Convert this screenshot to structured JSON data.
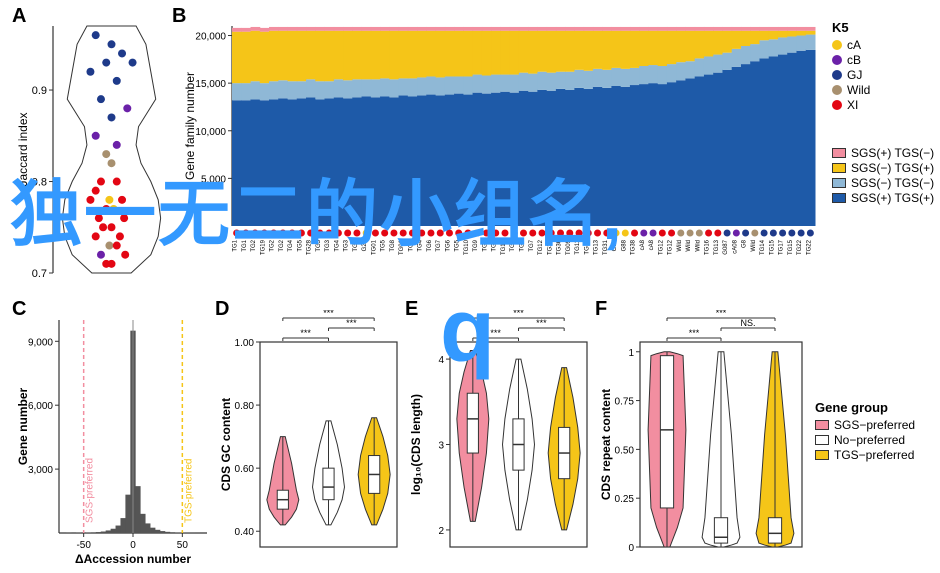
{
  "overlay": {
    "main": "独一无二的小组名,",
    "sub": "q"
  },
  "panels": {
    "A": "A",
    "B": "B",
    "C": "C",
    "D": "D",
    "E": "E",
    "F": "F"
  },
  "panelA": {
    "ylabel": "Jaccard index",
    "ylim": [
      0.7,
      0.97
    ],
    "yticks": [
      0.7,
      0.8,
      0.9
    ],
    "points": [
      {
        "x": 0.5,
        "y": 0.95,
        "c": "#1e3a8a"
      },
      {
        "x": 0.35,
        "y": 0.96,
        "c": "#1e3a8a"
      },
      {
        "x": 0.45,
        "y": 0.93,
        "c": "#1e3a8a"
      },
      {
        "x": 0.6,
        "y": 0.94,
        "c": "#1e3a8a"
      },
      {
        "x": 0.3,
        "y": 0.92,
        "c": "#1e3a8a"
      },
      {
        "x": 0.55,
        "y": 0.91,
        "c": "#1e3a8a"
      },
      {
        "x": 0.7,
        "y": 0.93,
        "c": "#1e3a8a"
      },
      {
        "x": 0.4,
        "y": 0.89,
        "c": "#1e3a8a"
      },
      {
        "x": 0.65,
        "y": 0.88,
        "c": "#6b21a8"
      },
      {
        "x": 0.5,
        "y": 0.87,
        "c": "#1e3a8a"
      },
      {
        "x": 0.35,
        "y": 0.85,
        "c": "#6b21a8"
      },
      {
        "x": 0.55,
        "y": 0.84,
        "c": "#6b21a8"
      },
      {
        "x": 0.45,
        "y": 0.83,
        "c": "#a8906f"
      },
      {
        "x": 0.5,
        "y": 0.82,
        "c": "#a8906f"
      },
      {
        "x": 0.4,
        "y": 0.8,
        "c": "#e30613"
      },
      {
        "x": 0.55,
        "y": 0.8,
        "c": "#e30613"
      },
      {
        "x": 0.35,
        "y": 0.79,
        "c": "#e30613"
      },
      {
        "x": 0.48,
        "y": 0.78,
        "c": "#f5c518"
      },
      {
        "x": 0.3,
        "y": 0.78,
        "c": "#e30613"
      },
      {
        "x": 0.6,
        "y": 0.78,
        "c": "#e30613"
      },
      {
        "x": 0.45,
        "y": 0.77,
        "c": "#e30613"
      },
      {
        "x": 0.52,
        "y": 0.77,
        "c": "#f5c518"
      },
      {
        "x": 0.38,
        "y": 0.76,
        "c": "#e30613"
      },
      {
        "x": 0.62,
        "y": 0.76,
        "c": "#e30613"
      },
      {
        "x": 0.5,
        "y": 0.75,
        "c": "#e30613"
      },
      {
        "x": 0.42,
        "y": 0.75,
        "c": "#e30613"
      },
      {
        "x": 0.58,
        "y": 0.74,
        "c": "#e30613"
      },
      {
        "x": 0.35,
        "y": 0.74,
        "c": "#e30613"
      },
      {
        "x": 0.48,
        "y": 0.73,
        "c": "#a8906f"
      },
      {
        "x": 0.55,
        "y": 0.73,
        "c": "#e30613"
      },
      {
        "x": 0.4,
        "y": 0.72,
        "c": "#6b21a8"
      },
      {
        "x": 0.63,
        "y": 0.72,
        "c": "#e30613"
      },
      {
        "x": 0.5,
        "y": 0.71,
        "c": "#e30613"
      },
      {
        "x": 0.45,
        "y": 0.71,
        "c": "#e30613"
      }
    ]
  },
  "panelB": {
    "ylabel": "Gene family number",
    "yticks": [
      "5,000",
      "10,000",
      "15,000",
      "20,000"
    ],
    "yvals": [
      5000,
      10000,
      15000,
      20000
    ],
    "ymax": 21000,
    "colors": {
      "sgs_pos_tgs_neg": "#f28ea0",
      "sgs_neg_tgs_pos": "#f5c518",
      "sgs_neg_tgs_neg": "#8fb8d6",
      "sgs_pos_tgs_pos": "#1e5aa8"
    },
    "xlabels": [
      "TG1",
      "TG1",
      "TG2",
      "TG19",
      "TG2",
      "TG2",
      "TG4",
      "TG5",
      "TG28",
      "TG3",
      "TG3",
      "TG4",
      "TG3",
      "TG4",
      "G28",
      "TG01",
      "TG5",
      "TG8",
      "TG01",
      "TG6",
      "TG4",
      "TG6",
      "TG7",
      "TG6",
      "TG5",
      "TG10",
      "TG9",
      "TG9",
      "TG7",
      "TG10",
      "TG8",
      "TG8",
      "TG7",
      "TG12",
      "TG30",
      "TG36",
      "TG09",
      "TG11",
      "TG11",
      "TG13",
      "TG31",
      "G87",
      "G88",
      "TG38",
      "cA8",
      "cA8",
      "TG12",
      "TG12",
      "Wild",
      "Wild",
      "Wild",
      "TG16",
      "TG13",
      "G087",
      "cA08",
      "G8",
      "Wild",
      "TG14",
      "TG15",
      "TG17",
      "TG15",
      "TG22",
      "TG22"
    ],
    "xdotcolors": [
      "#e30613",
      "#e30613",
      "#e30613",
      "#e30613",
      "#e30613",
      "#e30613",
      "#e30613",
      "#e30613",
      "#e30613",
      "#e30613",
      "#e30613",
      "#e30613",
      "#e30613",
      "#e30613",
      "#f5c518",
      "#e30613",
      "#e30613",
      "#e30613",
      "#e30613",
      "#e30613",
      "#e30613",
      "#e30613",
      "#e30613",
      "#e30613",
      "#e30613",
      "#e30613",
      "#e30613",
      "#e30613",
      "#e30613",
      "#e30613",
      "#e30613",
      "#e30613",
      "#e30613",
      "#e30613",
      "#e30613",
      "#e30613",
      "#e30613",
      "#e30613",
      "#e30613",
      "#e30613",
      "#e30613",
      "#f5c518",
      "#f5c518",
      "#e30613",
      "#6b21a8",
      "#6b21a8",
      "#e30613",
      "#e30613",
      "#a8906f",
      "#a8906f",
      "#a8906f",
      "#e30613",
      "#e30613",
      "#1e3a8a",
      "#6b21a8",
      "#1e3a8a",
      "#a8906f",
      "#1e3a8a",
      "#1e3a8a",
      "#1e3a8a",
      "#1e3a8a",
      "#1e3a8a",
      "#1e3a8a"
    ],
    "bars": [
      [
        13200,
        1800,
        5400,
        400
      ],
      [
        13200,
        1800,
        5400,
        400
      ],
      [
        13300,
        1900,
        5300,
        400
      ],
      [
        13200,
        1800,
        5400,
        400
      ],
      [
        13300,
        1900,
        5300,
        400
      ],
      [
        13400,
        1900,
        5200,
        400
      ],
      [
        13300,
        1900,
        5300,
        400
      ],
      [
        13400,
        1800,
        5300,
        400
      ],
      [
        13500,
        1900,
        5100,
        400
      ],
      [
        13300,
        1900,
        5300,
        400
      ],
      [
        13400,
        1800,
        5300,
        400
      ],
      [
        13500,
        1900,
        5100,
        400
      ],
      [
        13400,
        1900,
        5200,
        400
      ],
      [
        13500,
        1900,
        5100,
        400
      ],
      [
        13600,
        1800,
        5100,
        400
      ],
      [
        13500,
        1900,
        5100,
        400
      ],
      [
        13600,
        1900,
        5000,
        400
      ],
      [
        13500,
        1900,
        5100,
        400
      ],
      [
        13700,
        1800,
        5000,
        400
      ],
      [
        13600,
        1900,
        5000,
        400
      ],
      [
        13700,
        1900,
        4900,
        400
      ],
      [
        13800,
        1900,
        4800,
        400
      ],
      [
        13700,
        1900,
        4900,
        400
      ],
      [
        13800,
        1900,
        4800,
        400
      ],
      [
        13900,
        1800,
        4800,
        400
      ],
      [
        13800,
        1900,
        4800,
        400
      ],
      [
        14000,
        1900,
        4600,
        400
      ],
      [
        13900,
        1900,
        4700,
        400
      ],
      [
        14000,
        1900,
        4600,
        400
      ],
      [
        14100,
        1800,
        4600,
        400
      ],
      [
        14000,
        1900,
        4600,
        400
      ],
      [
        14200,
        1900,
        4400,
        400
      ],
      [
        14100,
        1900,
        4500,
        400
      ],
      [
        14300,
        1900,
        4300,
        400
      ],
      [
        14200,
        1900,
        4400,
        400
      ],
      [
        14400,
        1800,
        4300,
        400
      ],
      [
        14300,
        1900,
        4300,
        400
      ],
      [
        14500,
        1900,
        4100,
        400
      ],
      [
        14400,
        1900,
        4200,
        400
      ],
      [
        14600,
        1900,
        4000,
        400
      ],
      [
        14500,
        1900,
        4100,
        400
      ],
      [
        14700,
        1900,
        3900,
        400
      ],
      [
        14600,
        1900,
        4000,
        400
      ],
      [
        14800,
        1800,
        3900,
        400
      ],
      [
        14900,
        1900,
        3700,
        400
      ],
      [
        15000,
        1900,
        3600,
        400
      ],
      [
        14900,
        1900,
        3700,
        400
      ],
      [
        15100,
        1900,
        3500,
        400
      ],
      [
        15300,
        1900,
        3300,
        400
      ],
      [
        15500,
        1800,
        3200,
        400
      ],
      [
        15700,
        1900,
        2900,
        400
      ],
      [
        15900,
        1900,
        2700,
        400
      ],
      [
        16100,
        1900,
        2500,
        400
      ],
      [
        16400,
        1800,
        2300,
        400
      ],
      [
        16700,
        1900,
        1900,
        400
      ],
      [
        17000,
        1900,
        1600,
        400
      ],
      [
        17300,
        1800,
        1400,
        400
      ],
      [
        17600,
        1900,
        1000,
        400
      ],
      [
        17800,
        1800,
        900,
        400
      ],
      [
        18000,
        1800,
        700,
        400
      ],
      [
        18200,
        1700,
        600,
        400
      ],
      [
        18400,
        1600,
        500,
        400
      ],
      [
        18500,
        1600,
        400,
        400
      ]
    ]
  },
  "k5_legend": {
    "title": "K5",
    "items": [
      {
        "label": "cA",
        "color": "#f5c518"
      },
      {
        "label": "cB",
        "color": "#6b21a8"
      },
      {
        "label": "GJ",
        "color": "#1e3a8a"
      },
      {
        "label": "Wild",
        "color": "#a8906f"
      },
      {
        "label": "XI",
        "color": "#e30613"
      }
    ]
  },
  "stack_legend": {
    "items": [
      {
        "label": "SGS(+) TGS(−)",
        "color": "#f28ea0"
      },
      {
        "label": "SGS(−) TGS(+)",
        "color": "#f5c518"
      },
      {
        "label": "SGS(−) TGS(−)",
        "color": "#8fb8d6"
      },
      {
        "label": "SGS(+) TGS(+)",
        "color": "#1e5aa8"
      }
    ]
  },
  "panelC": {
    "ylabel": "Gene number",
    "xlabel": "ΔAccession number",
    "yticks": [
      "3,000",
      "6,000",
      "9,000"
    ],
    "yvals": [
      3000,
      6000,
      9000
    ],
    "xticks": [
      -50,
      0,
      50
    ],
    "xlim": [
      -75,
      75
    ],
    "ymax": 10000,
    "line_sgs": {
      "x": -50,
      "color": "#f28ea0",
      "label": "SGS-preferred"
    },
    "line_tgs": {
      "x": 50,
      "color": "#f5c518",
      "label": "TGS-preferred"
    },
    "bars": [
      {
        "x": -65,
        "y": 10
      },
      {
        "x": -55,
        "y": 15
      },
      {
        "x": -45,
        "y": 20
      },
      {
        "x": -40,
        "y": 30
      },
      {
        "x": -35,
        "y": 45
      },
      {
        "x": -30,
        "y": 70
      },
      {
        "x": -25,
        "y": 120
      },
      {
        "x": -20,
        "y": 200
      },
      {
        "x": -15,
        "y": 350
      },
      {
        "x": -10,
        "y": 700
      },
      {
        "x": -5,
        "y": 1800
      },
      {
        "x": 0,
        "y": 9500
      },
      {
        "x": 5,
        "y": 2200
      },
      {
        "x": 10,
        "y": 900
      },
      {
        "x": 15,
        "y": 450
      },
      {
        "x": 20,
        "y": 250
      },
      {
        "x": 25,
        "y": 150
      },
      {
        "x": 30,
        "y": 90
      },
      {
        "x": 35,
        "y": 55
      },
      {
        "x": 40,
        "y": 35
      },
      {
        "x": 45,
        "y": 25
      },
      {
        "x": 50,
        "y": 18
      },
      {
        "x": 55,
        "y": 12
      },
      {
        "x": 60,
        "y": 8
      },
      {
        "x": 65,
        "y": 5
      }
    ]
  },
  "panelD": {
    "ylabel": "CDS GC content",
    "yticks": [
      0.4,
      0.6,
      0.8,
      1.0
    ],
    "ylim": [
      0.35,
      1.0
    ],
    "sig": [
      [
        "sgs",
        "no",
        "***"
      ],
      [
        "sgs",
        "tgs",
        "***"
      ],
      [
        "no",
        "tgs",
        "***"
      ]
    ],
    "violins": {
      "sgs": {
        "median": 0.5,
        "q1": 0.47,
        "q3": 0.53,
        "min": 0.42,
        "max": 0.7,
        "color": "#f28ea0"
      },
      "no": {
        "median": 0.54,
        "q1": 0.5,
        "q3": 0.6,
        "min": 0.42,
        "max": 0.75,
        "color": "#ffffff"
      },
      "tgs": {
        "median": 0.58,
        "q1": 0.52,
        "q3": 0.64,
        "min": 0.42,
        "max": 0.76,
        "color": "#f5c518"
      }
    }
  },
  "panelE": {
    "ylabel": "log₁₀(CDS length)",
    "yticks": [
      2,
      3,
      4
    ],
    "ylim": [
      1.8,
      4.2
    ],
    "sig": [
      [
        "sgs",
        "no",
        "***"
      ],
      [
        "sgs",
        "tgs",
        "***"
      ],
      [
        "no",
        "tgs",
        "***"
      ]
    ],
    "violins": {
      "sgs": {
        "median": 3.3,
        "q1": 2.9,
        "q3": 3.6,
        "min": 2.1,
        "max": 4.1,
        "color": "#f28ea0"
      },
      "no": {
        "median": 3.0,
        "q1": 2.7,
        "q3": 3.3,
        "min": 2.0,
        "max": 4.0,
        "color": "#ffffff"
      },
      "tgs": {
        "median": 2.9,
        "q1": 2.6,
        "q3": 3.2,
        "min": 2.0,
        "max": 3.9,
        "color": "#f5c518"
      }
    }
  },
  "panelF": {
    "ylabel": "CDS repeat content",
    "yticks": [
      0.0,
      0.25,
      0.5,
      0.75,
      1.0
    ],
    "ylim": [
      0,
      1.05
    ],
    "sig": [
      [
        "sgs",
        "no",
        "***"
      ],
      [
        "sgs",
        "tgs",
        "***"
      ],
      [
        "no",
        "tgs",
        "NS."
      ]
    ],
    "violins": {
      "sgs": {
        "median": 0.6,
        "q1": 0.2,
        "q3": 0.98,
        "min": 0.0,
        "max": 1.0,
        "color": "#f28ea0"
      },
      "no": {
        "median": 0.05,
        "q1": 0.02,
        "q3": 0.15,
        "min": 0.0,
        "max": 1.0,
        "color": "#ffffff"
      },
      "tgs": {
        "median": 0.07,
        "q1": 0.02,
        "q3": 0.15,
        "min": 0.0,
        "max": 1.0,
        "color": "#f5c518"
      }
    }
  },
  "gene_group_legend": {
    "title": "Gene group",
    "items": [
      {
        "label": "SGS−preferred",
        "color": "#f28ea0"
      },
      {
        "label": "No−preferred",
        "color": "#ffffff"
      },
      {
        "label": "TGS−preferred",
        "color": "#f5c518"
      }
    ]
  }
}
